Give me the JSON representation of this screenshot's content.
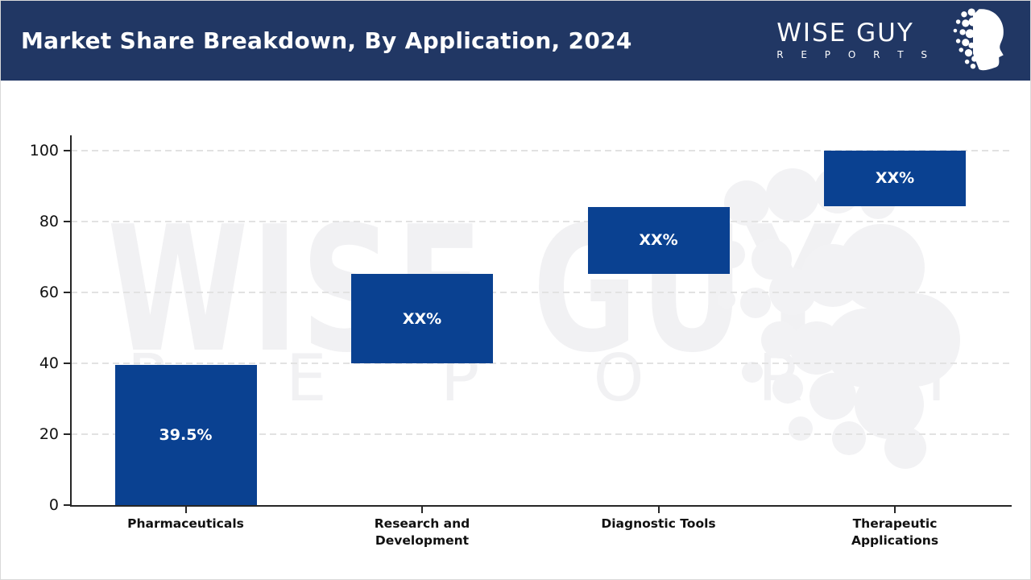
{
  "header": {
    "title": "Market Share Breakdown, By Application, 2024",
    "logo": {
      "line1": "WISE GUY",
      "line2": "R E P O R T S"
    }
  },
  "watermark": {
    "line1": "WISE GUY",
    "line2": "R E P O R T S"
  },
  "colors": {
    "header_bg": "#213764",
    "bar": "#0a4191",
    "grid": "#e2e2e2",
    "axis": "#262626",
    "bar_label_text": "#ffffff",
    "tick_text": "#111111",
    "watermark": "#f1f1f3"
  },
  "chart_data": {
    "type": "bar",
    "subtype": "waterfall",
    "title": "Market Share Breakdown, By Application, 2024",
    "categories": [
      "Pharmaceuticals",
      "Research and\nDevelopment",
      "Diagnostic Tools",
      "Therapeutic\nApplications"
    ],
    "segments": [
      [
        0,
        39.5
      ],
      [
        40,
        65.2
      ],
      [
        65.2,
        84.2
      ],
      [
        84.4,
        100
      ]
    ],
    "values": [
      39.5,
      25.2,
      19.0,
      15.6
    ],
    "bar_labels": [
      "39.5%",
      "XX%",
      "XX%",
      "XX%"
    ],
    "yticks": [
      0,
      20,
      40,
      60,
      80,
      100
    ],
    "ylim": [
      0,
      104
    ],
    "xlabel": "",
    "ylabel": "",
    "grid": "dashed-horizontal",
    "legend": "none"
  }
}
